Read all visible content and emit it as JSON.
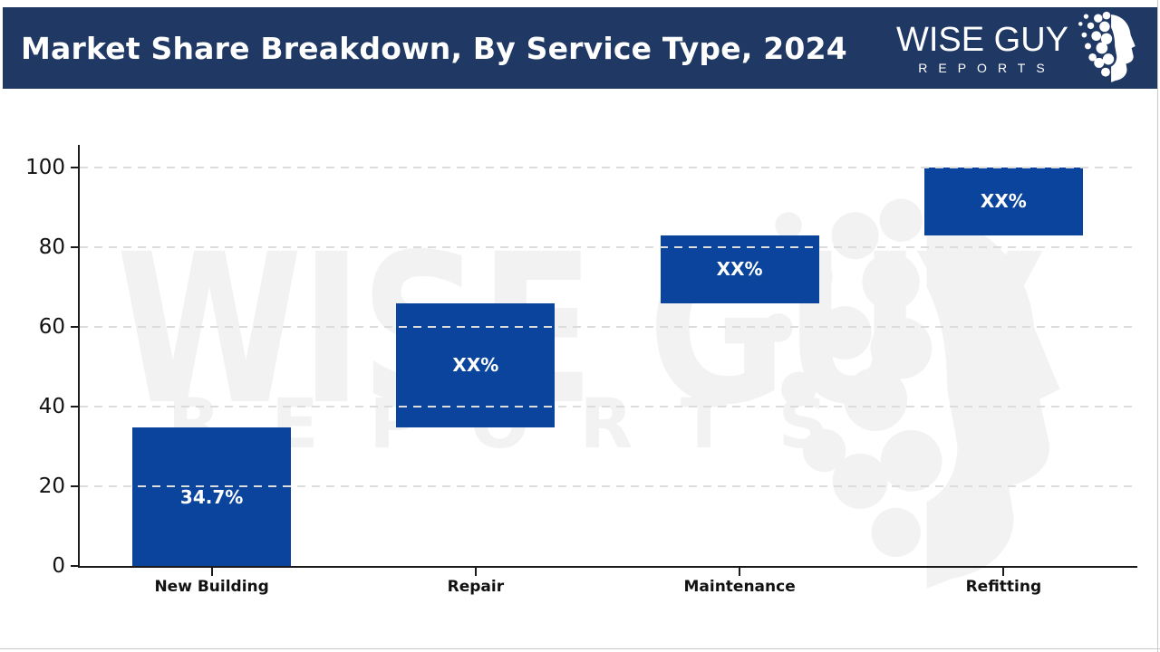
{
  "header": {
    "title": "Market Share Breakdown, By Service Type, 2024",
    "logo": {
      "brand_line1": "WISE GUY",
      "brand_line2": "REPORTS"
    }
  },
  "watermark": {
    "line1": "WISE GUY",
    "line2": "REPORTS"
  },
  "colors": {
    "header_background": "#1f3864",
    "title_text": "#ffffff",
    "bar_fill": "#0a449c",
    "bar_label_text": "#ffffff",
    "axis": "#1a1a1a",
    "gridline": "#dcdcdc",
    "watermark": "#f2f2f2",
    "canvas_border": "#c9c9c9"
  },
  "chart_data": {
    "type": "bar",
    "subtype": "waterfall",
    "title": "Market Share Breakdown, By Service Type, 2024",
    "categories": [
      "New Building",
      "Repair",
      "Maintenance",
      "Refitting"
    ],
    "segments": [
      {
        "category": "New Building",
        "start": 0,
        "end": 34.7,
        "value_label": "34.7%"
      },
      {
        "category": "Repair",
        "start": 34.7,
        "end": 66,
        "value_label": "XX%"
      },
      {
        "category": "Maintenance",
        "start": 66,
        "end": 83,
        "value_label": "XX%"
      },
      {
        "category": "Refitting",
        "start": 83,
        "end": 100,
        "value_label": "XX%"
      }
    ],
    "xlabel": "",
    "ylabel": "",
    "ylim": [
      0,
      100
    ],
    "yticks": [
      0,
      20,
      40,
      60,
      80,
      100
    ],
    "grid": "horizontal-dashed-over-bars",
    "legend": "none",
    "units": "percent market share"
  }
}
